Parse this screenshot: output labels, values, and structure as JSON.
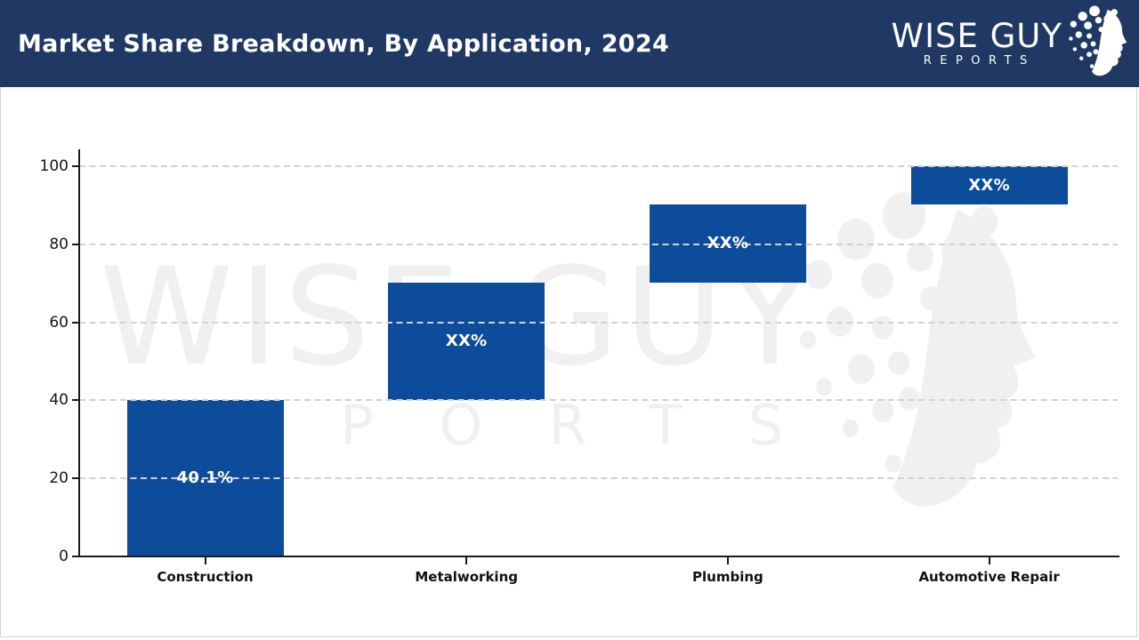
{
  "header": {
    "title": "Market Share Breakdown, By Application, 2024",
    "background_color": "#1f3864",
    "logo": {
      "line1": "WISE GUY",
      "line2": "REPORTS"
    }
  },
  "watermark": {
    "line1": "WISE GUY",
    "line2": "REPORTS"
  },
  "chart_data": {
    "type": "bar",
    "subtype": "waterfall-style floating segments",
    "title": "Market Share Breakdown, By Application, 2024",
    "categories": [
      "Construction",
      "Metalworking",
      "Plumbing",
      "Automotive Repair"
    ],
    "segments": [
      [
        0,
        40.1
      ],
      [
        40.1,
        70.1
      ],
      [
        70.1,
        90.1
      ],
      [
        90.1,
        100
      ]
    ],
    "bar_labels": [
      "40.1%",
      "XX%",
      "XX%",
      "XX%"
    ],
    "xlabel": "",
    "ylabel": "",
    "ylim": [
      0,
      105
    ],
    "yticks": [
      0,
      20,
      40,
      60,
      80,
      100
    ],
    "grid": "horizontal dashed, drawn above bars",
    "grid_color": "#d2d2d2",
    "bar_color": "#0d4b9b",
    "bar_label_color": "#ffffff",
    "axis_color": "#1a1a1a",
    "legend": "none"
  }
}
